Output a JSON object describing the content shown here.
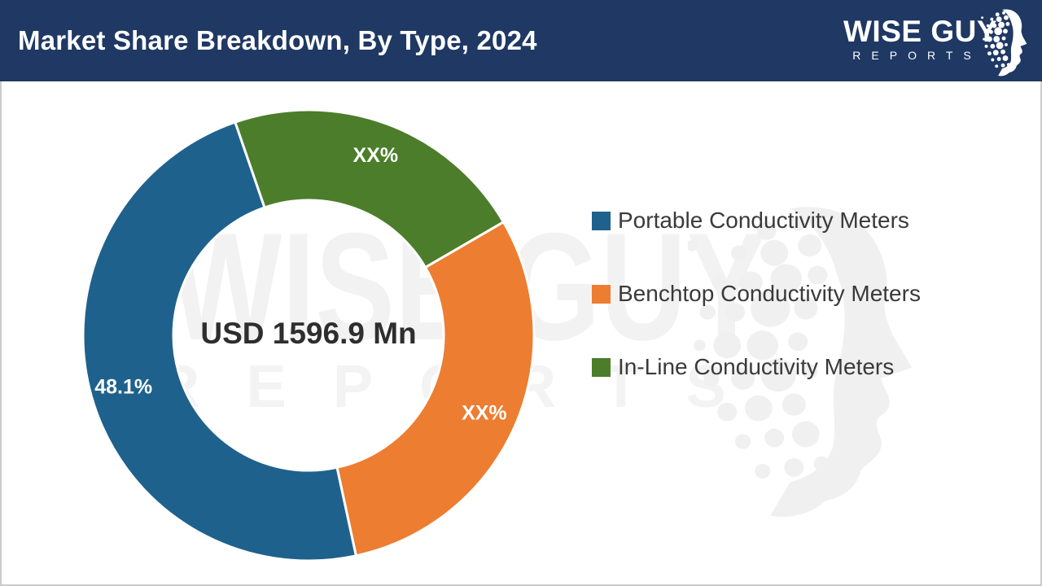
{
  "header": {
    "title": "Market Share Breakdown, By Type, 2024",
    "bg_color": "#1f3864",
    "logo": {
      "brand_line1": "WISE GUY",
      "brand_line2": "REPORTS"
    }
  },
  "chart_data": {
    "type": "pie",
    "subtype": "donut",
    "title": "Market Share Breakdown, By Type, 2024",
    "center_label": "USD 1596.9 Mn",
    "legend_position": "right",
    "inner_radius_ratio": 0.6,
    "start_angle_deg": -19,
    "series": [
      {
        "name": "Portable Conductivity Meters",
        "label": "48.1%",
        "value": 48.1,
        "color": "#1f618d"
      },
      {
        "name": "Benchtop Conductivity Meters",
        "label": "XX%",
        "value": 30.0,
        "color": "#ed7d31"
      },
      {
        "name": "In-Line Conductivity Meters",
        "label": "XX%",
        "value": 21.9,
        "color": "#4c7d2b"
      }
    ]
  },
  "watermark": {
    "line1": "WISE GUY",
    "line2": "REPORTS"
  }
}
